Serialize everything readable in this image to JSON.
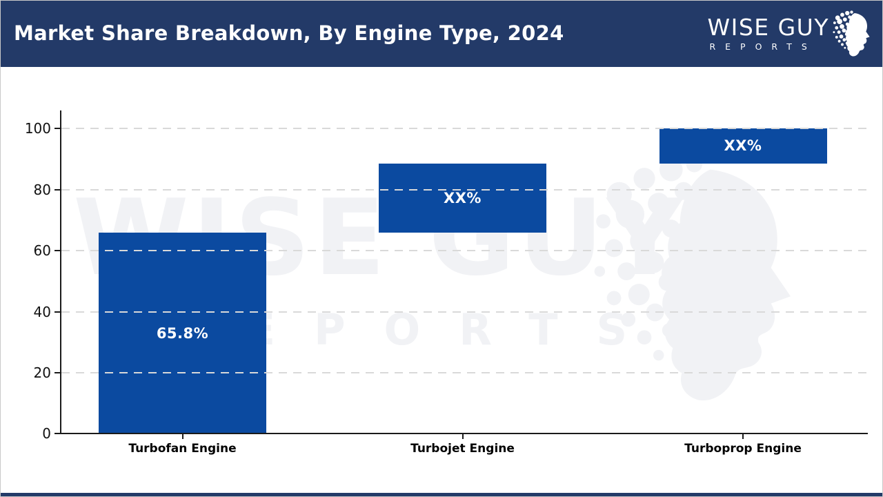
{
  "header": {
    "title": "Market Share Breakdown, By Engine Type, 2024",
    "logo": {
      "line1": "WISE GUY",
      "line2": "REPORTS",
      "icon": "head-profile-made-of-dots"
    }
  },
  "watermark": {
    "line1": "WISE GUY",
    "line2": "REPORTS",
    "icon": "head-profile-made-of-dots"
  },
  "colors": {
    "header_bg": "#233a68",
    "bar": "#0b4aa0",
    "grid": "#d9d9d9",
    "axis": "#1a1a1a",
    "watermark": "#f1f2f5",
    "bar_label_text": "#ffffff",
    "title_text": "#ffffff"
  },
  "chart_data": {
    "type": "bar",
    "subtype": "floating-segment breakdown (each bar stacks on the previous, cumulative to 100)",
    "title": "Market Share Breakdown, By Engine Type, 2024",
    "categories": [
      "Turbofan Engine",
      "Turbojet Engine",
      "Turboprop Engine"
    ],
    "bars": [
      {
        "category": "Turbofan Engine",
        "start": 0,
        "end": 65.8,
        "label": "65.8%"
      },
      {
        "category": "Turbojet Engine",
        "start": 65.8,
        "end": 88.6,
        "label": "XX%"
      },
      {
        "category": "Turboprop Engine",
        "start": 88.6,
        "end": 100,
        "label": "XX%"
      }
    ],
    "yticks": [
      0,
      20,
      40,
      60,
      80,
      100
    ],
    "ylim": [
      0,
      100
    ],
    "xlabel": "",
    "ylabel": "",
    "legend": "none",
    "grid": "horizontal dashed gridlines drawn above bars",
    "note": "Second and third segment values are masked as XX% in the image; ends estimated from gridlines"
  }
}
